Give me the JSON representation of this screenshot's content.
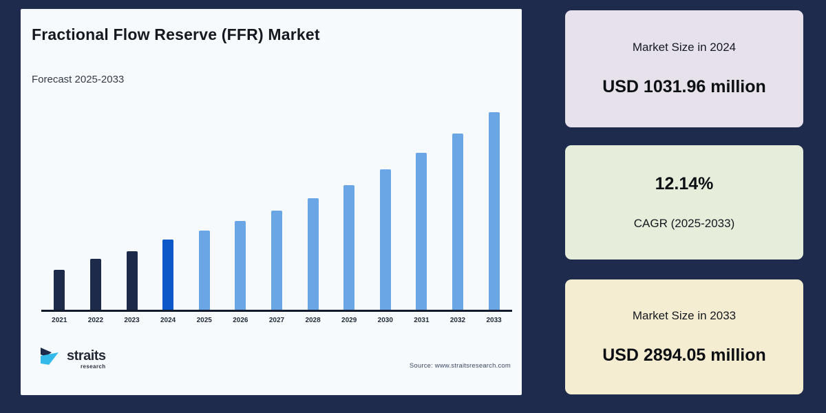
{
  "page": {
    "background_color": "#1e2b4c",
    "panel_background_color": "#f7fafd"
  },
  "header": {
    "title": "Fractional Flow Reserve (FFR) Market",
    "subtitle": "Forecast 2025-2033"
  },
  "chart_data": {
    "type": "bar",
    "title": "Fractional Flow Reserve (FFR) Market",
    "xlabel": "",
    "ylabel": "",
    "categories": [
      "2021",
      "2022",
      "2023",
      "2024",
      "2025",
      "2026",
      "2027",
      "2028",
      "2029",
      "2030",
      "2031",
      "2032",
      "2033"
    ],
    "values": [
      588,
      744,
      854,
      1031.96,
      1157.2,
      1297.7,
      1455.3,
      1631.9,
      1830.1,
      2052.2,
      2301.4,
      2580.8,
      2894.05
    ],
    "units": "USD million",
    "ylim": [
      0,
      2900
    ],
    "grid": false,
    "legend": false,
    "axis_color": "#121a2d",
    "bar_roles": [
      "historical",
      "historical",
      "historical",
      "base_year",
      "forecast",
      "forecast",
      "forecast",
      "forecast",
      "forecast",
      "forecast",
      "forecast",
      "forecast",
      "forecast"
    ],
    "bar_colors": {
      "historical": "#1d2a4a",
      "base_year": "#0d57c8",
      "forecast": "#6aa5e6"
    }
  },
  "stat_cards": [
    {
      "label": "Market Size in 2024",
      "value": "USD 1031.96 million",
      "background": "#e7e1ec"
    },
    {
      "value": "12.14%",
      "label": "CAGR (2025-2033)",
      "background": "#e6eedb"
    },
    {
      "label": "Market Size in 2033",
      "value": "USD 2894.05 million",
      "background": "#f5edd1"
    }
  ],
  "footer": {
    "logo_name": "straits",
    "logo_subtext": "research",
    "logo_dark_color": "#1d2a4a",
    "logo_cyan_color": "#33b9ea",
    "source": "Source: www.straitsresearch.com"
  }
}
